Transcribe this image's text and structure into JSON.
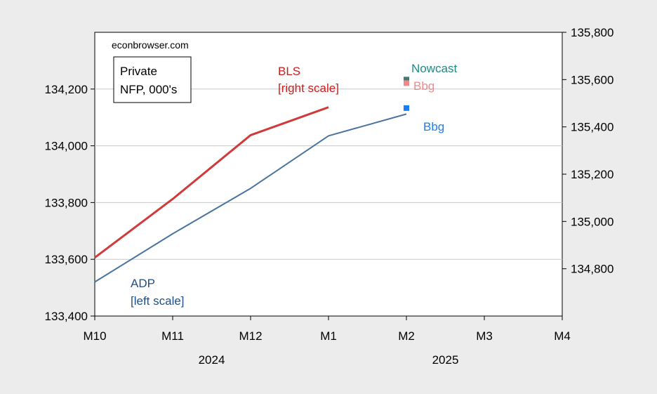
{
  "chart_data": {
    "type": "line",
    "source_note": "econbrowser.com",
    "legend_box": [
      "Private",
      "NFP, 000's"
    ],
    "x_categories": [
      "M10",
      "M11",
      "M12",
      "M1",
      "M2",
      "M3",
      "M4"
    ],
    "year_labels": [
      {
        "label": "2024",
        "at": "M12"
      },
      {
        "label": "2025",
        "at": "M3"
      }
    ],
    "left_axis": {
      "ylim": [
        133400,
        134400
      ],
      "ticks": [
        133400,
        133600,
        133800,
        134000,
        134200
      ],
      "tick_labels": [
        "133,400",
        "133,600",
        "133,800",
        "134,000",
        "134,200"
      ]
    },
    "right_axis": {
      "ylim": [
        134600,
        135800
      ],
      "ticks": [
        134800,
        135000,
        135200,
        135400,
        135600,
        135800
      ],
      "tick_labels": [
        "134,800",
        "135,000",
        "135,200",
        "135,400",
        "135,600",
        "135,800"
      ]
    },
    "grid": true,
    "series": [
      {
        "name": "ADP",
        "axis": "left",
        "color": "#4a74a0",
        "x": [
          "M10",
          "M11",
          "M12",
          "M1",
          "M2"
        ],
        "values": [
          133520,
          133690,
          133850,
          134035,
          134112
        ]
      },
      {
        "name": "BLS",
        "axis": "right",
        "color": "#d03a3a",
        "x": [
          "M10",
          "M11",
          "M12",
          "M1"
        ],
        "values": [
          134847,
          135095,
          135365,
          135483
        ]
      }
    ],
    "points": [
      {
        "name": "Nowcast",
        "axis": "right",
        "color": "#3e7a78",
        "x": "M2",
        "value": 135600
      },
      {
        "name": "Bbg",
        "axis": "right",
        "color": "#f08a8a",
        "x": "M2",
        "value": 135585
      },
      {
        "name": "Bbg",
        "axis": "left",
        "color": "#1a7ef0",
        "x": "M2",
        "value": 134133
      }
    ],
    "annotations": [
      {
        "id": "bls-label",
        "lines": [
          "BLS",
          "[right scale]"
        ],
        "color": "#c81e1e"
      },
      {
        "id": "adp-label",
        "lines": [
          "ADP",
          "[left scale]"
        ],
        "color": "#1f4f86"
      },
      {
        "id": "nowcast-label",
        "lines": [
          "Nowcast"
        ],
        "color": "#1e8a84"
      },
      {
        "id": "bbg-right-label",
        "lines": [
          "Bbg"
        ],
        "color": "#f08a8a"
      },
      {
        "id": "bbg-left-label",
        "lines": [
          "Bbg"
        ],
        "color": "#1a7ef0"
      }
    ]
  }
}
